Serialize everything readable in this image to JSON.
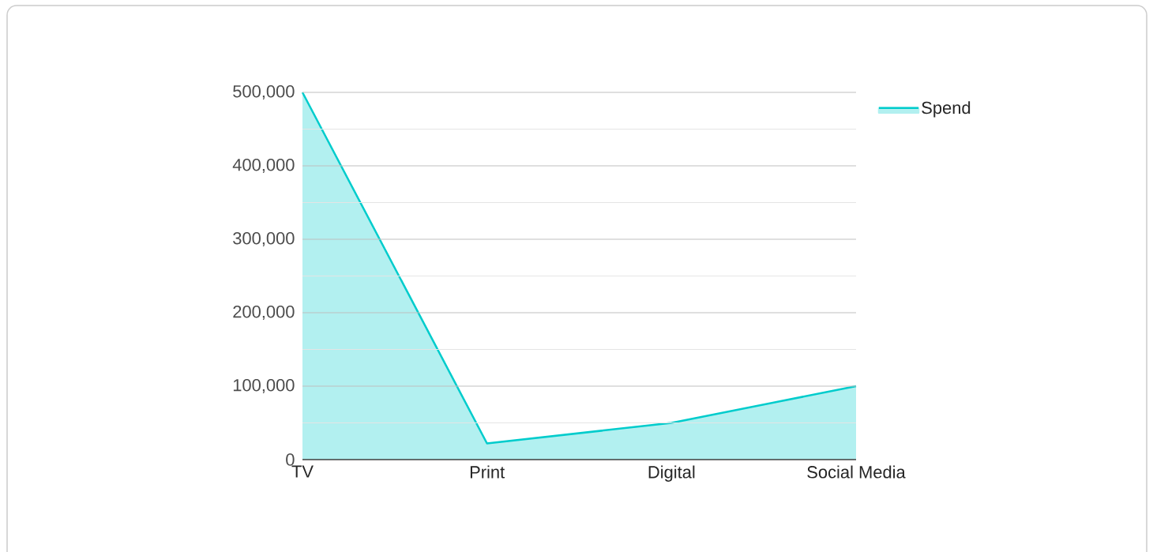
{
  "chart_data": {
    "type": "area",
    "categories": [
      "TV",
      "Print",
      "Digital",
      "Social Media"
    ],
    "series": [
      {
        "name": "Spend",
        "color": "#00cccc",
        "values": [
          500000,
          22000,
          50000,
          100000
        ]
      }
    ],
    "ylim": [
      0,
      500000
    ],
    "yticks": [
      {
        "value": 0,
        "label": "0"
      },
      {
        "value": 100000,
        "label": "100,000"
      },
      {
        "value": 200000,
        "label": "200,000"
      },
      {
        "value": 300000,
        "label": "300,000"
      },
      {
        "value": 400000,
        "label": "400,000"
      },
      {
        "value": 500000,
        "label": "500,000"
      }
    ],
    "grid": "y",
    "legend": "right"
  }
}
